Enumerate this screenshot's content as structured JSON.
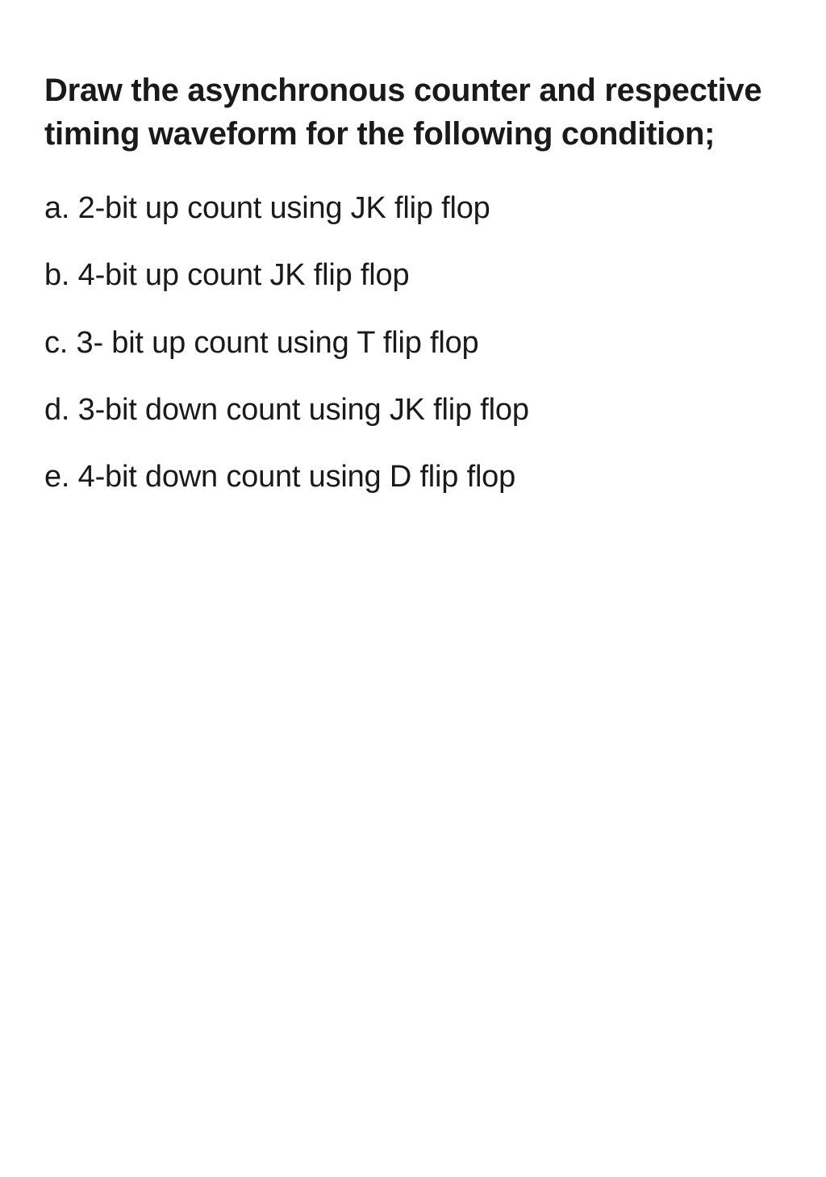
{
  "heading": "Draw the asynchronous counter and respective timing waveform for the following condition;",
  "items": [
    "a. 2-bit up count using JK flip flop",
    "b. 4-bit up count JK flip flop",
    "c. 3- bit up count using T flip flop",
    "d. 3-bit down count using JK flip flop",
    "e. 4-bit down count using D flip flop"
  ],
  "colors": {
    "background": "#ffffff",
    "text": "#1a1a1a"
  },
  "typography": {
    "heading_fontsize": 40,
    "heading_weight": 700,
    "body_fontsize": 38,
    "body_weight": 400
  }
}
